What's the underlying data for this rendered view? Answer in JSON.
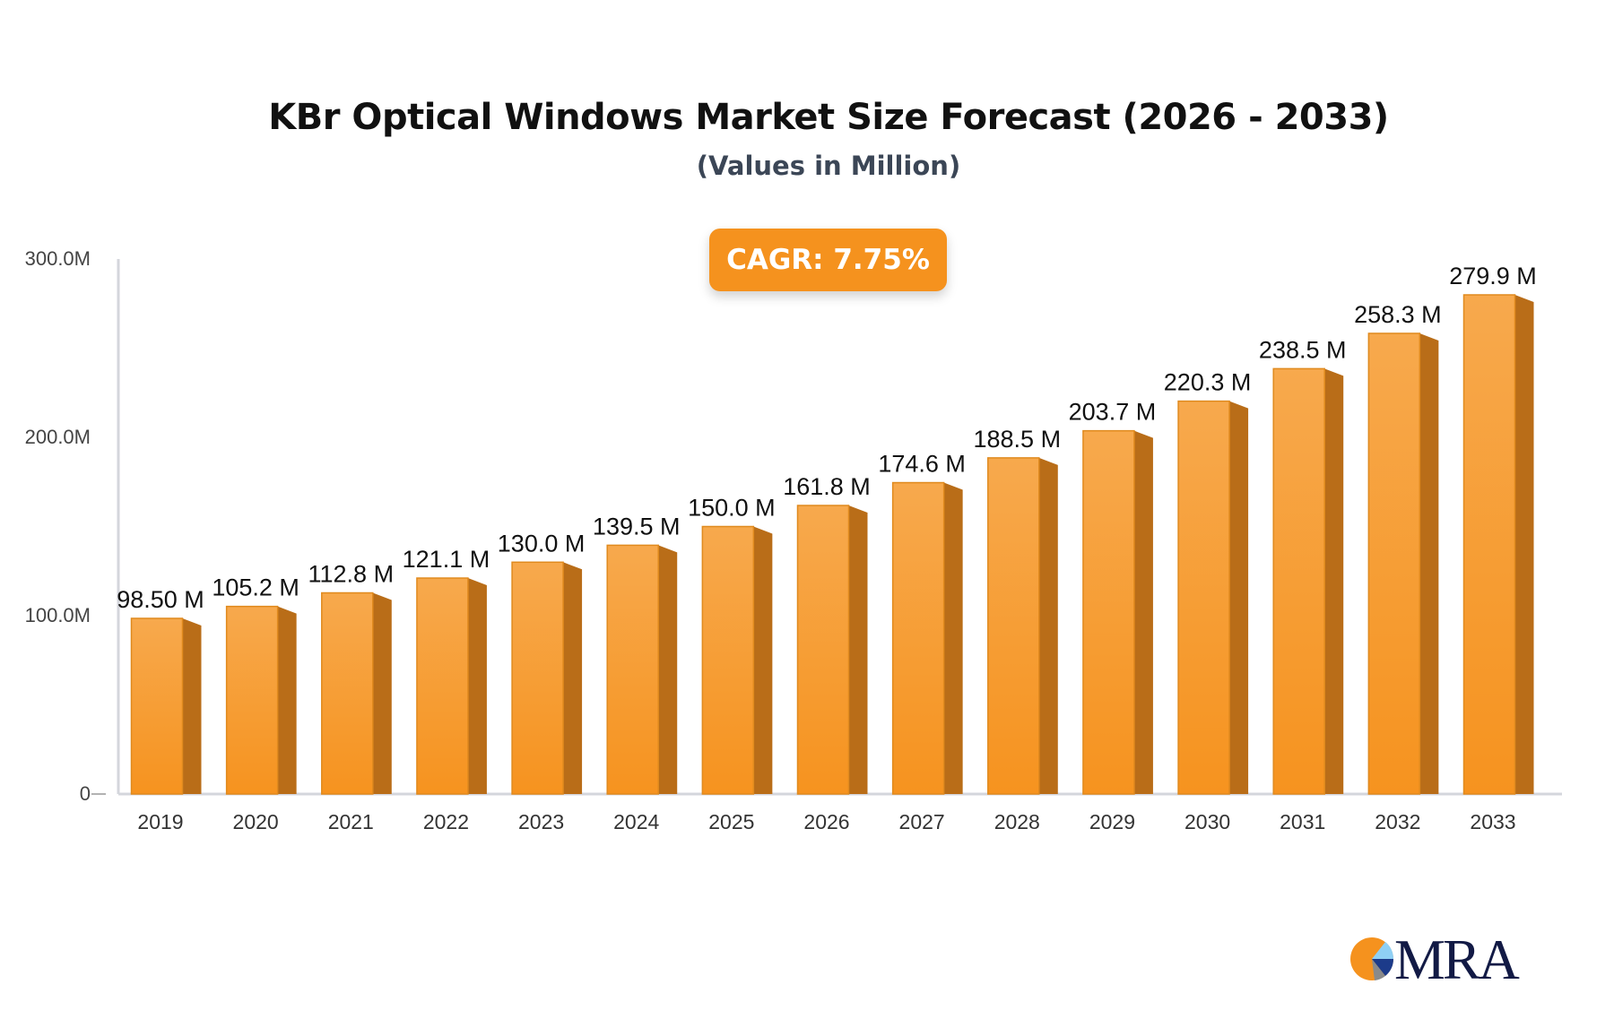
{
  "chart_data": {
    "type": "bar",
    "title": "KBr Optical Windows Market Size Forecast (2026 - 2033)",
    "subtitle": "(Values in Million)",
    "annotation": "CAGR: 7.75%",
    "categories": [
      "2019",
      "2020",
      "2021",
      "2022",
      "2023",
      "2024",
      "2025",
      "2026",
      "2027",
      "2028",
      "2029",
      "2030",
      "2031",
      "2032",
      "2033"
    ],
    "values": [
      98.5,
      105.2,
      112.8,
      121.1,
      130.0,
      139.5,
      150.0,
      161.8,
      174.6,
      188.5,
      203.7,
      220.3,
      238.5,
      258.3,
      279.9
    ],
    "data_labels": [
      "98.50 M",
      "105.2 M",
      "112.8 M",
      "121.1 M",
      "130.0 M",
      "139.5 M",
      "150.0 M",
      "161.8 M",
      "174.6 M",
      "188.5 M",
      "203.7 M",
      "220.3 M",
      "238.5 M",
      "258.3 M",
      "279.9 M"
    ],
    "ylim": [
      0,
      300
    ],
    "yticks": [
      0,
      100,
      200,
      300
    ],
    "ytick_labels": [
      "0",
      "100.0M",
      "200.0M",
      "300.0M"
    ],
    "xlabel": "",
    "ylabel": "",
    "grid": false,
    "colors": {
      "bar_front": "#f59a2e",
      "bar_side": "#b96d18",
      "cagr_bg": "#f5921e"
    }
  },
  "logo": {
    "text": "MRA"
  }
}
